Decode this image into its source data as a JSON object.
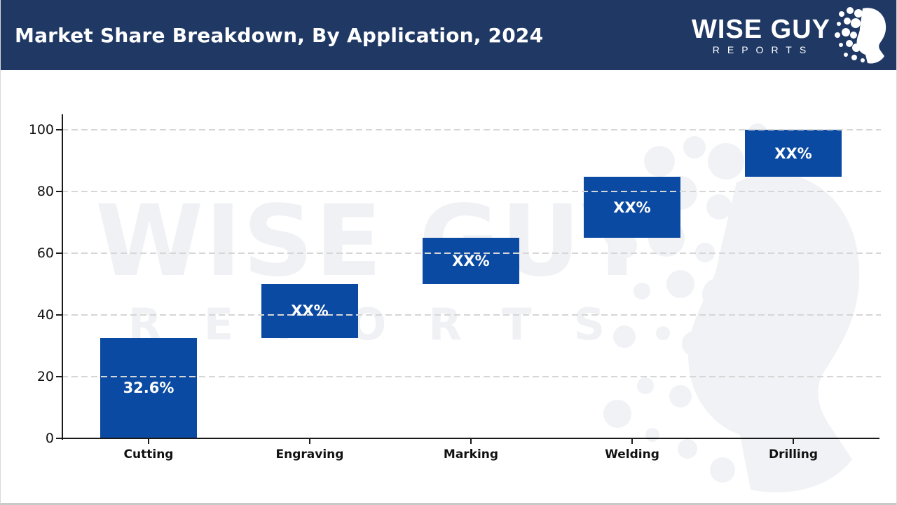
{
  "header": {
    "title": "Market Share Breakdown, By Application, 2024",
    "bg_color": "#1F3864",
    "logo": {
      "line1": "WISE GUY",
      "line2": "REPORTS"
    }
  },
  "watermark": {
    "line1": "WISE GUY",
    "line2": "REPORTS"
  },
  "chart_data": {
    "type": "bar",
    "subtype": "waterfall",
    "title": "Market Share Breakdown, By Application, 2024",
    "categories": [
      "Cutting",
      "Engraving",
      "Marking",
      "Welding",
      "Drilling"
    ],
    "segments": [
      {
        "category": "Cutting",
        "start": 0,
        "end": 32.6,
        "label": "32.6%"
      },
      {
        "category": "Engraving",
        "start": 32.6,
        "end": 50.0,
        "label": "XX%"
      },
      {
        "category": "Marking",
        "start": 50.0,
        "end": 65.0,
        "label": "XX%"
      },
      {
        "category": "Welding",
        "start": 65.0,
        "end": 84.7,
        "label": "XX%"
      },
      {
        "category": "Drilling",
        "start": 84.7,
        "end": 100.0,
        "label": "XX%"
      }
    ],
    "yticks": [
      0,
      20,
      40,
      60,
      80,
      100
    ],
    "ylim": [
      0,
      105
    ],
    "grid": "horizontal-dashed",
    "legend": "none",
    "xlabel": "",
    "ylabel": "",
    "bar_color": "#0B4AA2",
    "bar_label_color": "#ffffff",
    "axis_color": "#1a1a1a",
    "grid_color": "#d6d6d6"
  }
}
